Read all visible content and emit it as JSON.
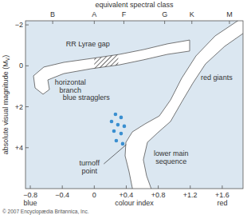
{
  "chart_data": {
    "type": "scatter",
    "title": "equivalent spectral class",
    "x_label": "colour index",
    "x_end_labels": [
      "blue",
      "red"
    ],
    "y_label": {
      "text": "absolute visual magnitude (M",
      "subscript": "V",
      "suffix": ")"
    },
    "xlim": [
      -0.86,
      1.86
    ],
    "ylim": [
      6,
      -2.2
    ],
    "xticks": [
      {
        "value": -0.8,
        "label": "−0.8"
      },
      {
        "value": -0.4,
        "label": "−0.4"
      },
      0,
      {
        "value": 0.4,
        "label": "+0.4"
      },
      {
        "value": 0.8,
        "label": "+0.8"
      },
      {
        "value": 1.2,
        "label": "+1.2"
      },
      {
        "value": 1.6,
        "label": "+1.6"
      }
    ],
    "yticks": [
      {
        "value": -2,
        "label": "−2"
      },
      0,
      {
        "value": 2,
        "label": "+2"
      },
      {
        "value": 4,
        "label": "+4"
      }
    ],
    "top_ticks": [
      {
        "value": -0.52,
        "label": "B"
      },
      {
        "value": 0.0,
        "label": "A"
      },
      {
        "value": 0.37,
        "label": "F"
      },
      {
        "value": 0.88,
        "label": "G"
      },
      {
        "value": 1.22,
        "label": "K"
      },
      {
        "value": 1.69,
        "label": "M"
      }
    ],
    "grid": false,
    "regions": [
      {
        "color": "#ffffff",
        "points": [
          [
            0.495,
            6.35
          ],
          [
            0.435,
            5.18
          ],
          [
            0.385,
            4.4
          ],
          [
            0.395,
            3.74
          ],
          [
            0.475,
            3.23
          ],
          [
            0.634,
            2.84
          ],
          [
            0.813,
            2.45
          ],
          [
            0.953,
            1.67
          ],
          [
            1.092,
            0.61
          ],
          [
            1.271,
            -0.48
          ],
          [
            1.51,
            -1.46
          ],
          [
            1.959,
            -2.63
          ],
          [
            1.959,
            -1.85
          ],
          [
            1.63,
            -0.95
          ],
          [
            1.391,
            -0.09
          ],
          [
            1.232,
            0.85
          ],
          [
            1.092,
            1.78
          ],
          [
            0.953,
            2.72
          ],
          [
            0.793,
            3.27
          ],
          [
            0.664,
            3.74
          ],
          [
            0.614,
            4.59
          ],
          [
            0.654,
            5.38
          ],
          [
            0.744,
            6.35
          ]
        ]
      },
      {
        "color": "#ffffff",
        "points": [
          [
            1.192,
            -1.26
          ],
          [
            0.913,
            -1.07
          ],
          [
            0.614,
            -0.79
          ],
          [
            0.315,
            -0.56
          ],
          [
            -0.033,
            -0.36
          ],
          [
            -0.382,
            -0.17
          ],
          [
            -0.631,
            0.06
          ],
          [
            -0.76,
            0.49
          ],
          [
            -0.74,
            1.08
          ],
          [
            -0.641,
            1.39
          ],
          [
            -0.561,
            1.16
          ],
          [
            -0.581,
            0.69
          ],
          [
            -0.382,
            0.38
          ],
          [
            -0.033,
            0.14
          ],
          [
            0.315,
            -0.05
          ],
          [
            0.614,
            -0.29
          ],
          [
            0.913,
            -0.56
          ],
          [
            1.192,
            -0.72
          ]
        ]
      }
    ],
    "rr_lyrae_gap": {
      "points": [
        [
          0.0,
          -0.36
        ],
        [
          0.3,
          -0.55
        ],
        [
          0.3,
          -0.04
        ],
        [
          0.0,
          0.13
        ]
      ]
    },
    "series": [
      {
        "color": "#3a8fd0",
        "marker": "circle",
        "x": [
          0.265,
          0.335,
          0.216,
          0.295,
          0.375,
          0.246,
          0.335,
          0.275,
          0.355
        ],
        "values": [
          2.37,
          2.52,
          2.72,
          2.88,
          2.95,
          3.19,
          3.31,
          3.66,
          3.81
        ]
      }
    ],
    "annotations": [
      {
        "lines": [
          "RR Lyrae gap"
        ],
        "x": -0.08,
        "y": -0.95
      },
      {
        "lines": [
          "horizontal",
          "branch"
        ],
        "x": -0.3,
        "y": 0.92
      },
      {
        "lines": [
          "red giants"
        ],
        "x": 1.53,
        "y": 0.69
      },
      {
        "lines": [
          "blue stragglers"
        ],
        "x": -0.1,
        "y": 1.67
      },
      {
        "lines": [
          "turnoff",
          "point"
        ],
        "x": -0.06,
        "y": 4.87,
        "pointer": [
          0.4,
          3.85
        ]
      },
      {
        "lines": [
          "lower main",
          "sequence"
        ],
        "x": 0.96,
        "y": 4.4
      }
    ],
    "copyright": "© 2007 Encyclopædia Britannica, Inc."
  }
}
